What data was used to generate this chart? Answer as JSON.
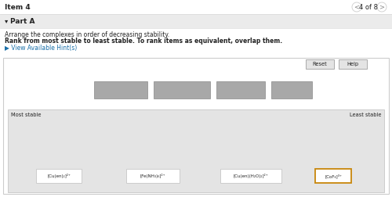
{
  "title": "Item 4",
  "page_info": "4 of 8",
  "part": "Part A",
  "instruction1": "Arrange the complexes in order of decreasing stability.",
  "instruction2": "Rank from most stable to least stable. To rank items as equivalent, overlap them.",
  "hint_text": "▶ View Available Hint(s)",
  "most_stable": "Most stable",
  "least_stable": "Least stable",
  "complexes": [
    "[Cu(en)₂]²⁺",
    "[Fe(NH₃)₆]²⁺",
    "[Cu(en)(H₂O)₂]²⁺",
    "[CoF₆]³⁺"
  ],
  "bg_color": "#f0f0f0",
  "white": "#ffffff",
  "gray_box": "#a8a8a8",
  "border_color": "#cccccc",
  "highlight_border": "#c8860a",
  "text_color": "#222222",
  "blue_link": "#1a6fa8",
  "button_bg": "#e4e4e4",
  "bottom_area_bg": "#e4e4e4",
  "header_border": "#dddddd",
  "part_bg": "#ebebeb"
}
